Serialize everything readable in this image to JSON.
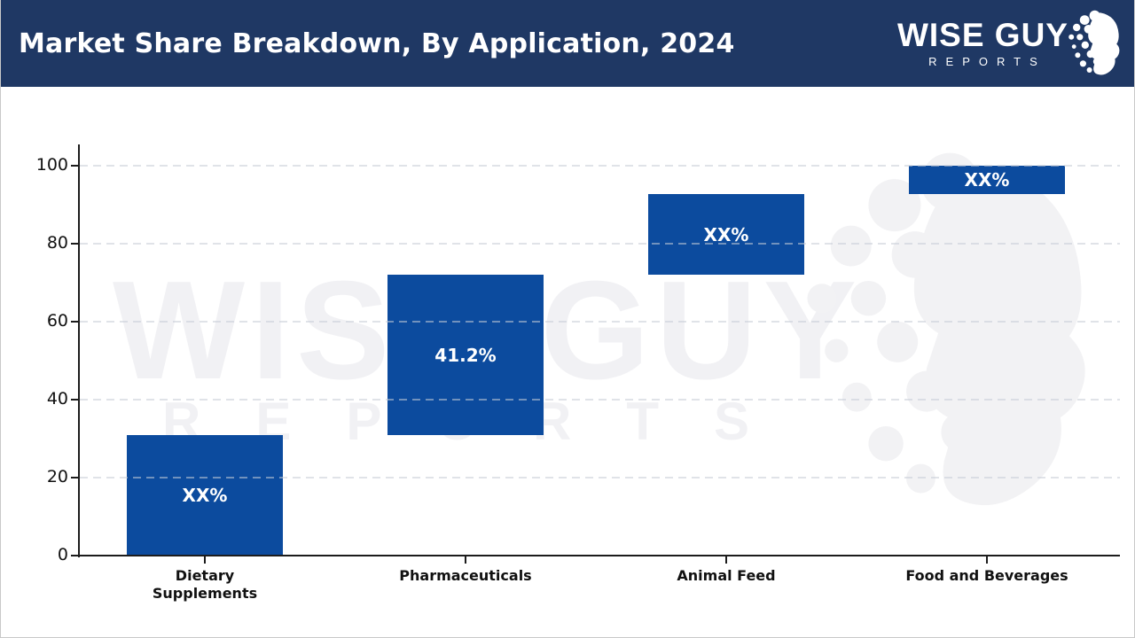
{
  "header": {
    "title": "Market Share Breakdown, By Application, 2024",
    "logo": {
      "line1": "WISE GUY",
      "line2": "REPORTS"
    }
  },
  "watermark": {
    "line1": "WISE GUY",
    "line2": "REPORTS"
  },
  "chart_data": {
    "type": "bar",
    "subtype": "floating-waterfall",
    "title": "Market Share Breakdown, By Application, 2024",
    "categories": [
      "Dietary Supplements",
      "Pharmaceuticals",
      "Animal Feed",
      "Food and Beverages"
    ],
    "category_lines": [
      [
        "Dietary",
        "Supplements"
      ],
      [
        "Pharmaceuticals"
      ],
      [
        "Animal Feed"
      ],
      [
        "Food and Beverages"
      ]
    ],
    "segments": [
      {
        "category": "Dietary Supplements",
        "start": 0,
        "end": 30.8,
        "value_label": "XX%"
      },
      {
        "category": "Pharmaceuticals",
        "start": 30.8,
        "end": 72.0,
        "value_label": "41.2%"
      },
      {
        "category": "Animal Feed",
        "start": 72.0,
        "end": 92.8,
        "value_label": "XX%"
      },
      {
        "category": "Food and Beverages",
        "start": 92.8,
        "end": 100,
        "value_label": "XX%"
      }
    ],
    "ylim": [
      0,
      100
    ],
    "yticks": [
      0,
      20,
      40,
      60,
      80,
      100
    ],
    "grid": {
      "horizontal": true,
      "style": "dashed"
    },
    "legend": "none",
    "bar_color": "#0c4b9e",
    "bar_label_color": "#ffffff"
  },
  "colors": {
    "header_bg": "#1f3864",
    "bar": "#0c4b9e",
    "axis": "#1c1c1c",
    "gridline": "#e4e7ec",
    "watermark": "#f1f1f4",
    "page_border": "#c9c9c9"
  }
}
